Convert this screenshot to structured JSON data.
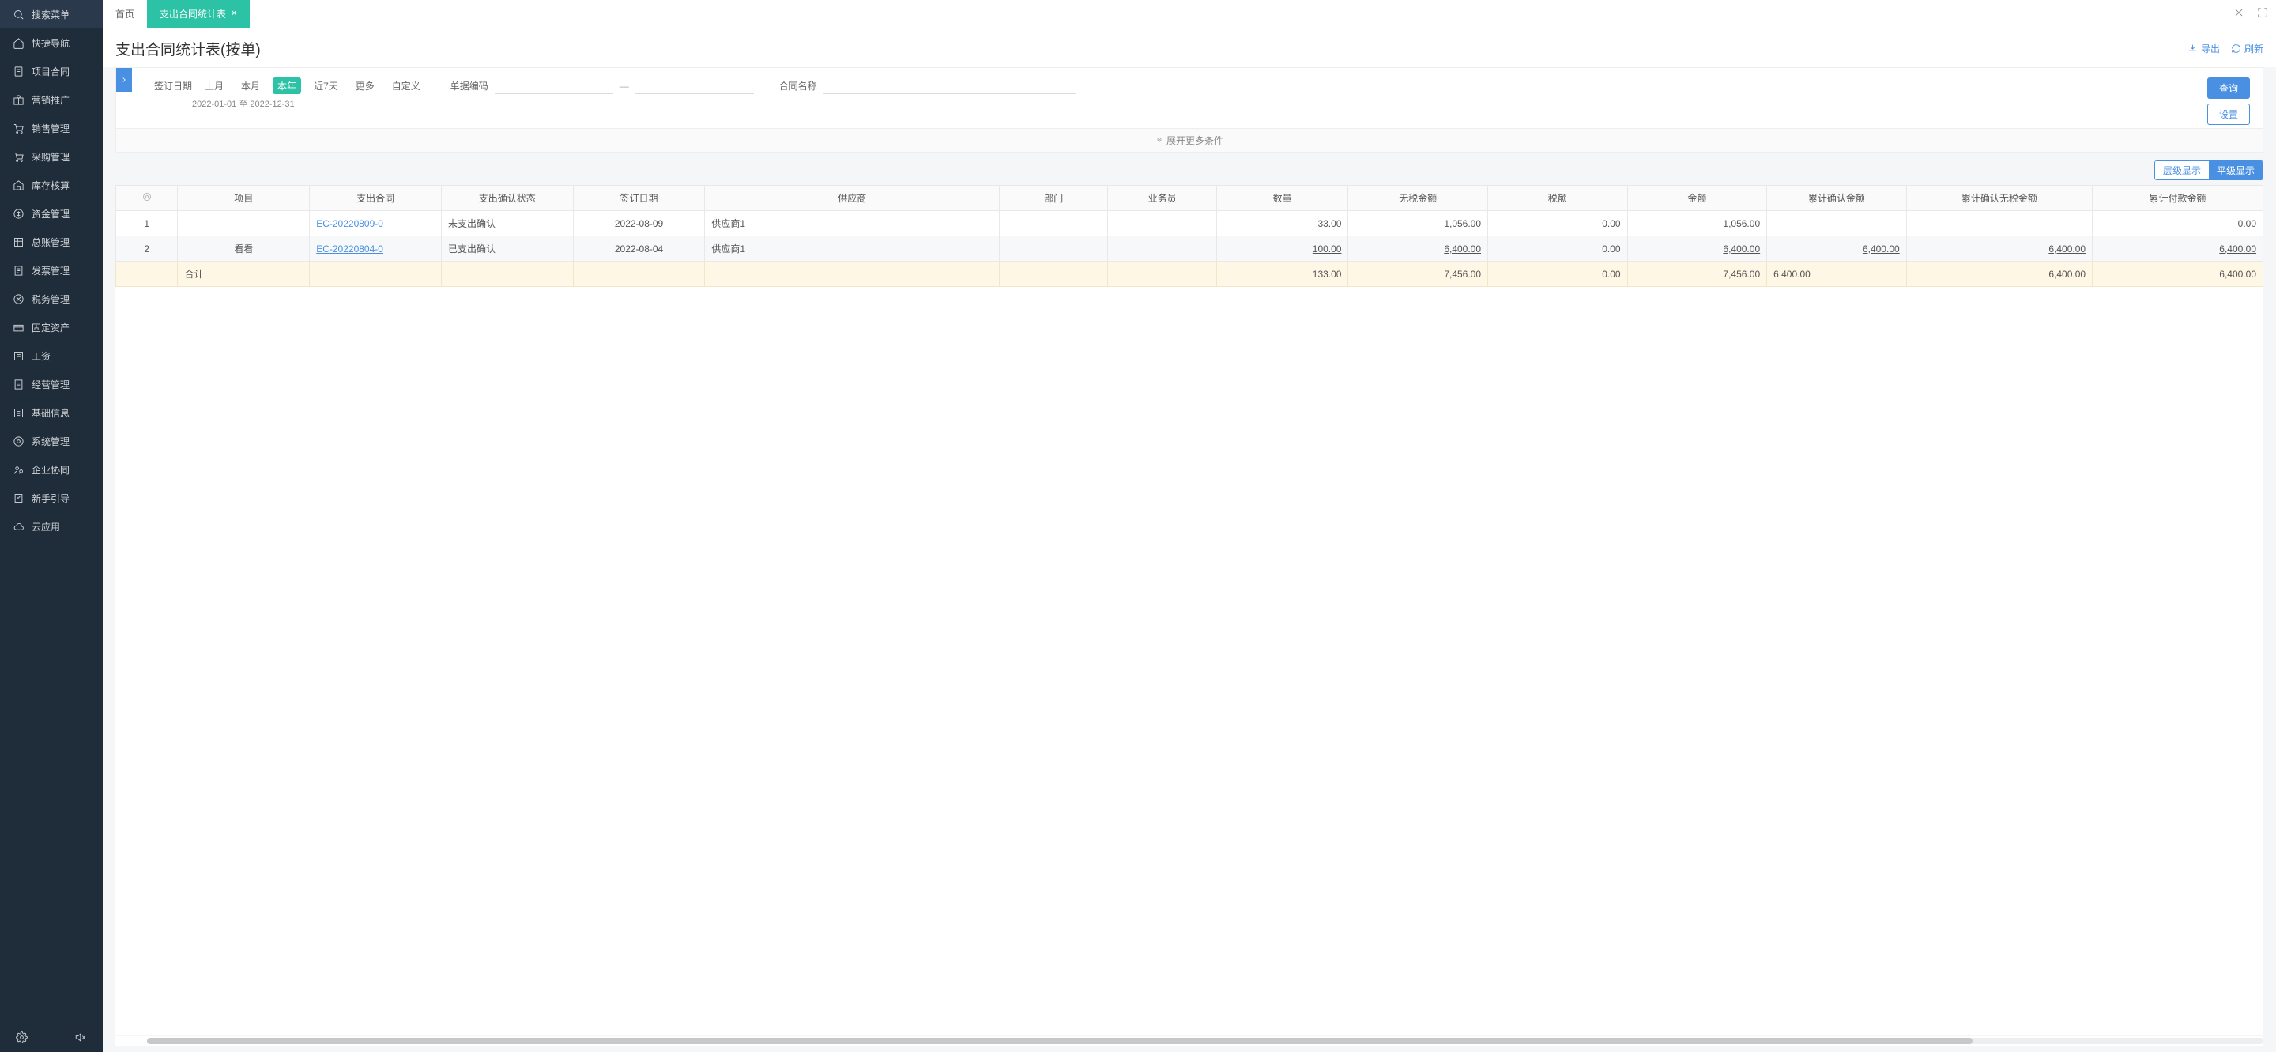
{
  "sidebar": {
    "items": [
      {
        "icon": "search",
        "label": "搜索菜单"
      },
      {
        "icon": "home",
        "label": "快捷导航"
      },
      {
        "icon": "doc",
        "label": "项目合同"
      },
      {
        "icon": "gift",
        "label": "营销推广"
      },
      {
        "icon": "cart",
        "label": "销售管理"
      },
      {
        "icon": "cart",
        "label": "采购管理"
      },
      {
        "icon": "house",
        "label": "库存核算"
      },
      {
        "icon": "money",
        "label": "资金管理"
      },
      {
        "icon": "ledger",
        "label": "总账管理"
      },
      {
        "icon": "invoice",
        "label": "发票管理"
      },
      {
        "icon": "tax",
        "label": "税务管理"
      },
      {
        "icon": "asset",
        "label": "固定资产"
      },
      {
        "icon": "salary",
        "label": "工资"
      },
      {
        "icon": "biz",
        "label": "经营管理"
      },
      {
        "icon": "info",
        "label": "基础信息"
      },
      {
        "icon": "sys",
        "label": "系统管理"
      },
      {
        "icon": "collab",
        "label": "企业协同"
      },
      {
        "icon": "guide",
        "label": "新手引导"
      },
      {
        "icon": "cloud",
        "label": "云应用"
      }
    ]
  },
  "tabs": {
    "home": "首页",
    "active": "支出合同统计表"
  },
  "page": {
    "title": "支出合同统计表(按单)",
    "export": "导出",
    "refresh": "刷新"
  },
  "filter": {
    "dateLabel": "签订日期",
    "opts": {
      "lastMonth": "上月",
      "thisMonth": "本月",
      "thisYear": "本年",
      "last7": "近7天",
      "more": "更多",
      "custom": "自定义"
    },
    "range": "2022-01-01 至 2022-12-31",
    "billLabel": "单据编码",
    "sep": "—",
    "nameLabel": "合同名称",
    "query": "查询",
    "settings": "设置",
    "expand": "展开更多条件"
  },
  "display": {
    "hier": "层级显示",
    "flat": "平级显示"
  },
  "table": {
    "headers": {
      "project": "项目",
      "contract": "支出合同",
      "status": "支出确认状态",
      "date": "签订日期",
      "supplier": "供应商",
      "dept": "部门",
      "sales": "业务员",
      "qty": "数量",
      "notax": "无税金额",
      "tax": "税额",
      "amount": "金额",
      "cumAmount": "累计确认金额",
      "cumNotax": "累计确认无税金额",
      "cumPay": "累计付款金额"
    },
    "rows": [
      {
        "idx": "1",
        "project": "",
        "contract": "EC-20220809-0",
        "status": "未支出确认",
        "date": "2022-08-09",
        "supplier": "供应商1",
        "dept": "",
        "sales": "",
        "qty": "33.00",
        "notax": "1,056.00",
        "tax": "0.00",
        "amount": "1,056.00",
        "cumAmount": "",
        "cumNotax": "",
        "cumPay": "0.00"
      },
      {
        "idx": "2",
        "project": "看看",
        "contract": "EC-20220804-0",
        "status": "已支出确认",
        "date": "2022-08-04",
        "supplier": "供应商1",
        "dept": "",
        "sales": "",
        "qty": "100.00",
        "notax": "6,400.00",
        "tax": "0.00",
        "amount": "6,400.00",
        "cumAmount": "6,400.00",
        "cumNotax": "6,400.00",
        "cumPay": "6,400.00"
      }
    ],
    "total": {
      "label": "合计",
      "qty": "133.00",
      "notax": "7,456.00",
      "tax": "0.00",
      "amount": "7,456.00",
      "cumAmount": "6,400.00",
      "cumNotax": "6,400.00",
      "cumPay": "6,400.00"
    }
  }
}
